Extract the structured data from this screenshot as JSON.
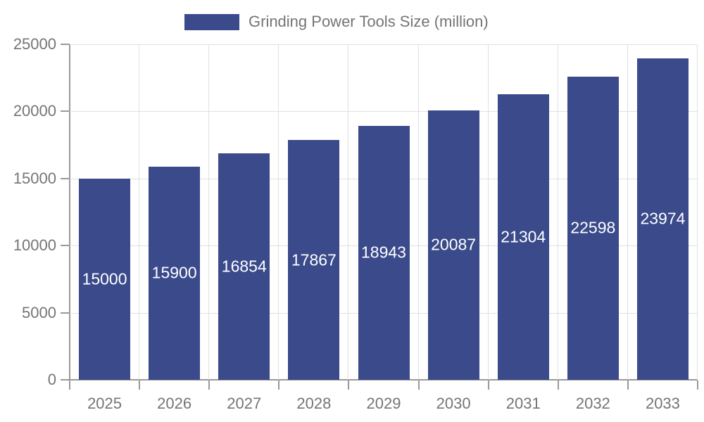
{
  "chart": {
    "colors": {
      "bar": "#3a4a8b",
      "grid": "#e0e0e0",
      "axis": "#999999",
      "tick_text": "#757575",
      "value_text": "#ffffff"
    }
  },
  "chart_data": {
    "type": "bar",
    "title": "Grinding Power Tools Size (million)",
    "categories": [
      "2025",
      "2026",
      "2027",
      "2028",
      "2029",
      "2030",
      "2031",
      "2032",
      "2033"
    ],
    "values": [
      15000,
      15900,
      16854,
      17867,
      18943,
      20087,
      21304,
      22598,
      23974
    ],
    "xlabel": "",
    "ylabel": "",
    "ylim": [
      0,
      25000
    ],
    "yticks": [
      0,
      5000,
      10000,
      15000,
      20000,
      25000
    ],
    "grid": true,
    "legend_position": "top",
    "value_labels": "inside-center"
  }
}
